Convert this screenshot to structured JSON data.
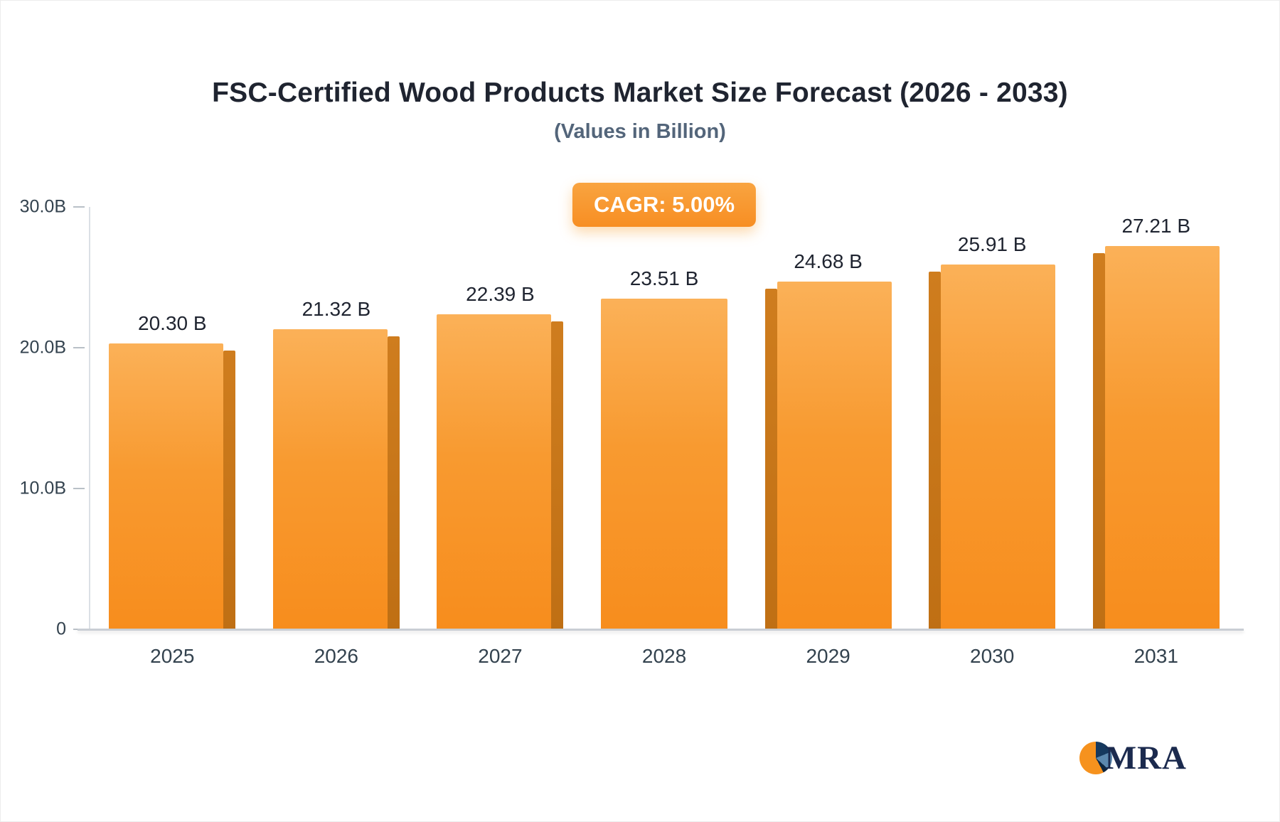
{
  "title": "FSC-Certified Wood Products Market Size Forecast (2026 - 2033)",
  "subtitle": "(Values in Billion)",
  "badge": {
    "label": "CAGR: 5.00%",
    "color": "#f89b3c"
  },
  "logo": {
    "text": "MRA"
  },
  "chart_data": {
    "type": "bar",
    "title": "FSC-Certified Wood Products Market Size Forecast (2026 - 2033)",
    "subtitle": "(Values in Billion)",
    "categories": [
      "2025",
      "2026",
      "2027",
      "2028",
      "2029",
      "2030",
      "2031"
    ],
    "values": [
      20.3,
      21.32,
      22.39,
      23.51,
      24.68,
      25.91,
      27.21
    ],
    "value_labels": [
      "20.30 B",
      "21.32 B",
      "22.39 B",
      "23.51 B",
      "24.68 B",
      "25.91 B",
      "27.21 B"
    ],
    "xlabel": "",
    "ylabel": "",
    "ylim": [
      0,
      30
    ],
    "yticks": [
      {
        "value": 0,
        "label": "0"
      },
      {
        "value": 10,
        "label": "10.0B"
      },
      {
        "value": 20,
        "label": "20.0B"
      },
      {
        "value": 30,
        "label": "30.0B"
      }
    ],
    "grid": false,
    "legend": false,
    "bar_color_top": "#fbb158",
    "bar_color_bottom": "#f78d1d",
    "bar_side_color": "#bf6f14",
    "annotation": "CAGR: 5.00%"
  }
}
